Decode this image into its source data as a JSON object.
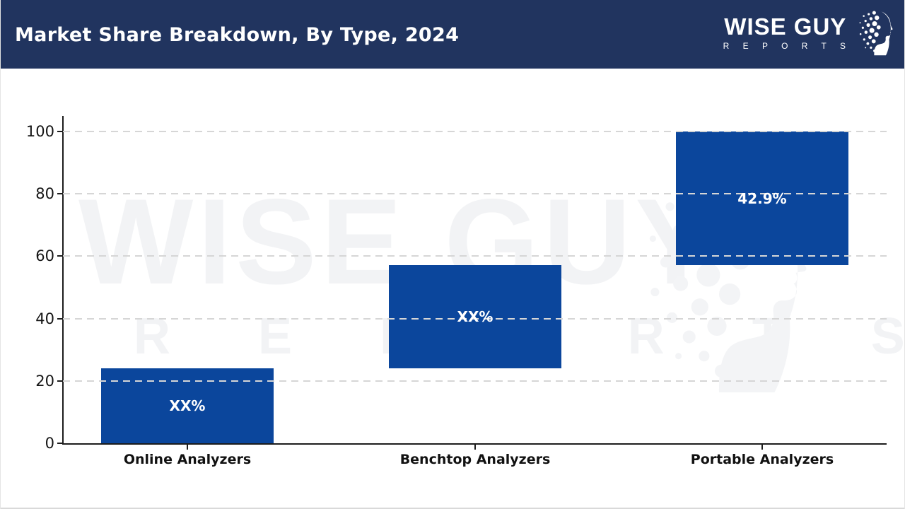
{
  "header": {
    "title": "Market Share Breakdown, By Type, 2024",
    "logo": {
      "line1": "WISE GUY",
      "line2": "R E P O R T S"
    }
  },
  "watermark": {
    "line1": "WISE GUY",
    "line2": "R E P O R T S"
  },
  "colors": {
    "header_bg": "#21345f",
    "bar": "#0b469c",
    "grid": "#d6d6d6",
    "axis": "#1c1c1c",
    "bar_label": "#ffffff",
    "watermark": "#f2f3f5"
  },
  "chart_data": {
    "type": "bar",
    "subtype": "waterfall-breakdown (floating segment bars, segments sum to 100%)",
    "title": "Market Share Breakdown, By Type, 2024",
    "categories": [
      "Online Analyzers",
      "Benchtop Analyzers",
      "Portable Analyzers"
    ],
    "segments": [
      {
        "category": "Online Analyzers",
        "start": 0,
        "end": 24,
        "value_label": "XX%"
      },
      {
        "category": "Benchtop Analyzers",
        "start": 24,
        "end": 57.1,
        "value_label": "XX%"
      },
      {
        "category": "Portable Analyzers",
        "start": 57.1,
        "end": 100,
        "value_label": "42.9%"
      }
    ],
    "ylim": [
      0,
      105
    ],
    "yticks": [
      0,
      20,
      40,
      60,
      80,
      100
    ],
    "xlabel": "",
    "ylabel": "",
    "grid": "horizontal-dashed",
    "legend": "none"
  }
}
